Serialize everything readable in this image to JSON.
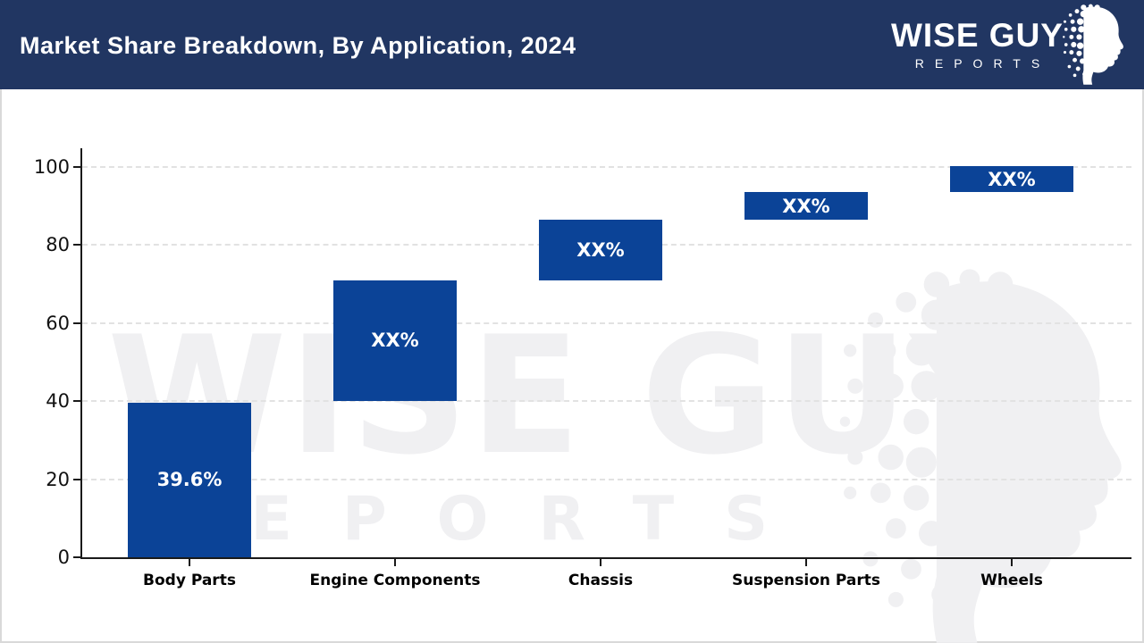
{
  "header": {
    "title": "Market Share Breakdown, By Application, 2024",
    "bg_color": "#213662",
    "logo": {
      "line1": "WISE GUY",
      "line2": "REPORTS"
    }
  },
  "watermark": {
    "line1": "WISE GUY",
    "line2": "REPORTS",
    "color": "#f0f0f2"
  },
  "chart_data": {
    "type": "bar",
    "subtype": "waterfall",
    "title": "Market Share Breakdown, By Application, 2024",
    "categories": [
      "Body Parts",
      "Engine Components",
      "Chassis",
      "Suspension Parts",
      "Wheels"
    ],
    "segments": [
      {
        "category": "Body Parts",
        "start": 0,
        "end": 39.6,
        "label": "39.6%"
      },
      {
        "category": "Engine Components",
        "start": 40,
        "end": 71,
        "label": "XX%"
      },
      {
        "category": "Chassis",
        "start": 71,
        "end": 86.5,
        "label": "XX%"
      },
      {
        "category": "Suspension Parts",
        "start": 86.5,
        "end": 93.5,
        "label": "XX%"
      },
      {
        "category": "Wheels",
        "start": 93.5,
        "end": 100.3,
        "label": "XX%"
      }
    ],
    "y_ticks": [
      0,
      20,
      40,
      60,
      80,
      100
    ],
    "ylim": [
      0,
      104
    ],
    "xlabel": "",
    "ylabel": "",
    "grid": "horizontal dashed",
    "legend": "none",
    "bar_color": "#0b4397",
    "bar_label_color": "#ffffff",
    "axis_color": "#1a1a1a",
    "gridline_color": "#e2e2e2"
  }
}
